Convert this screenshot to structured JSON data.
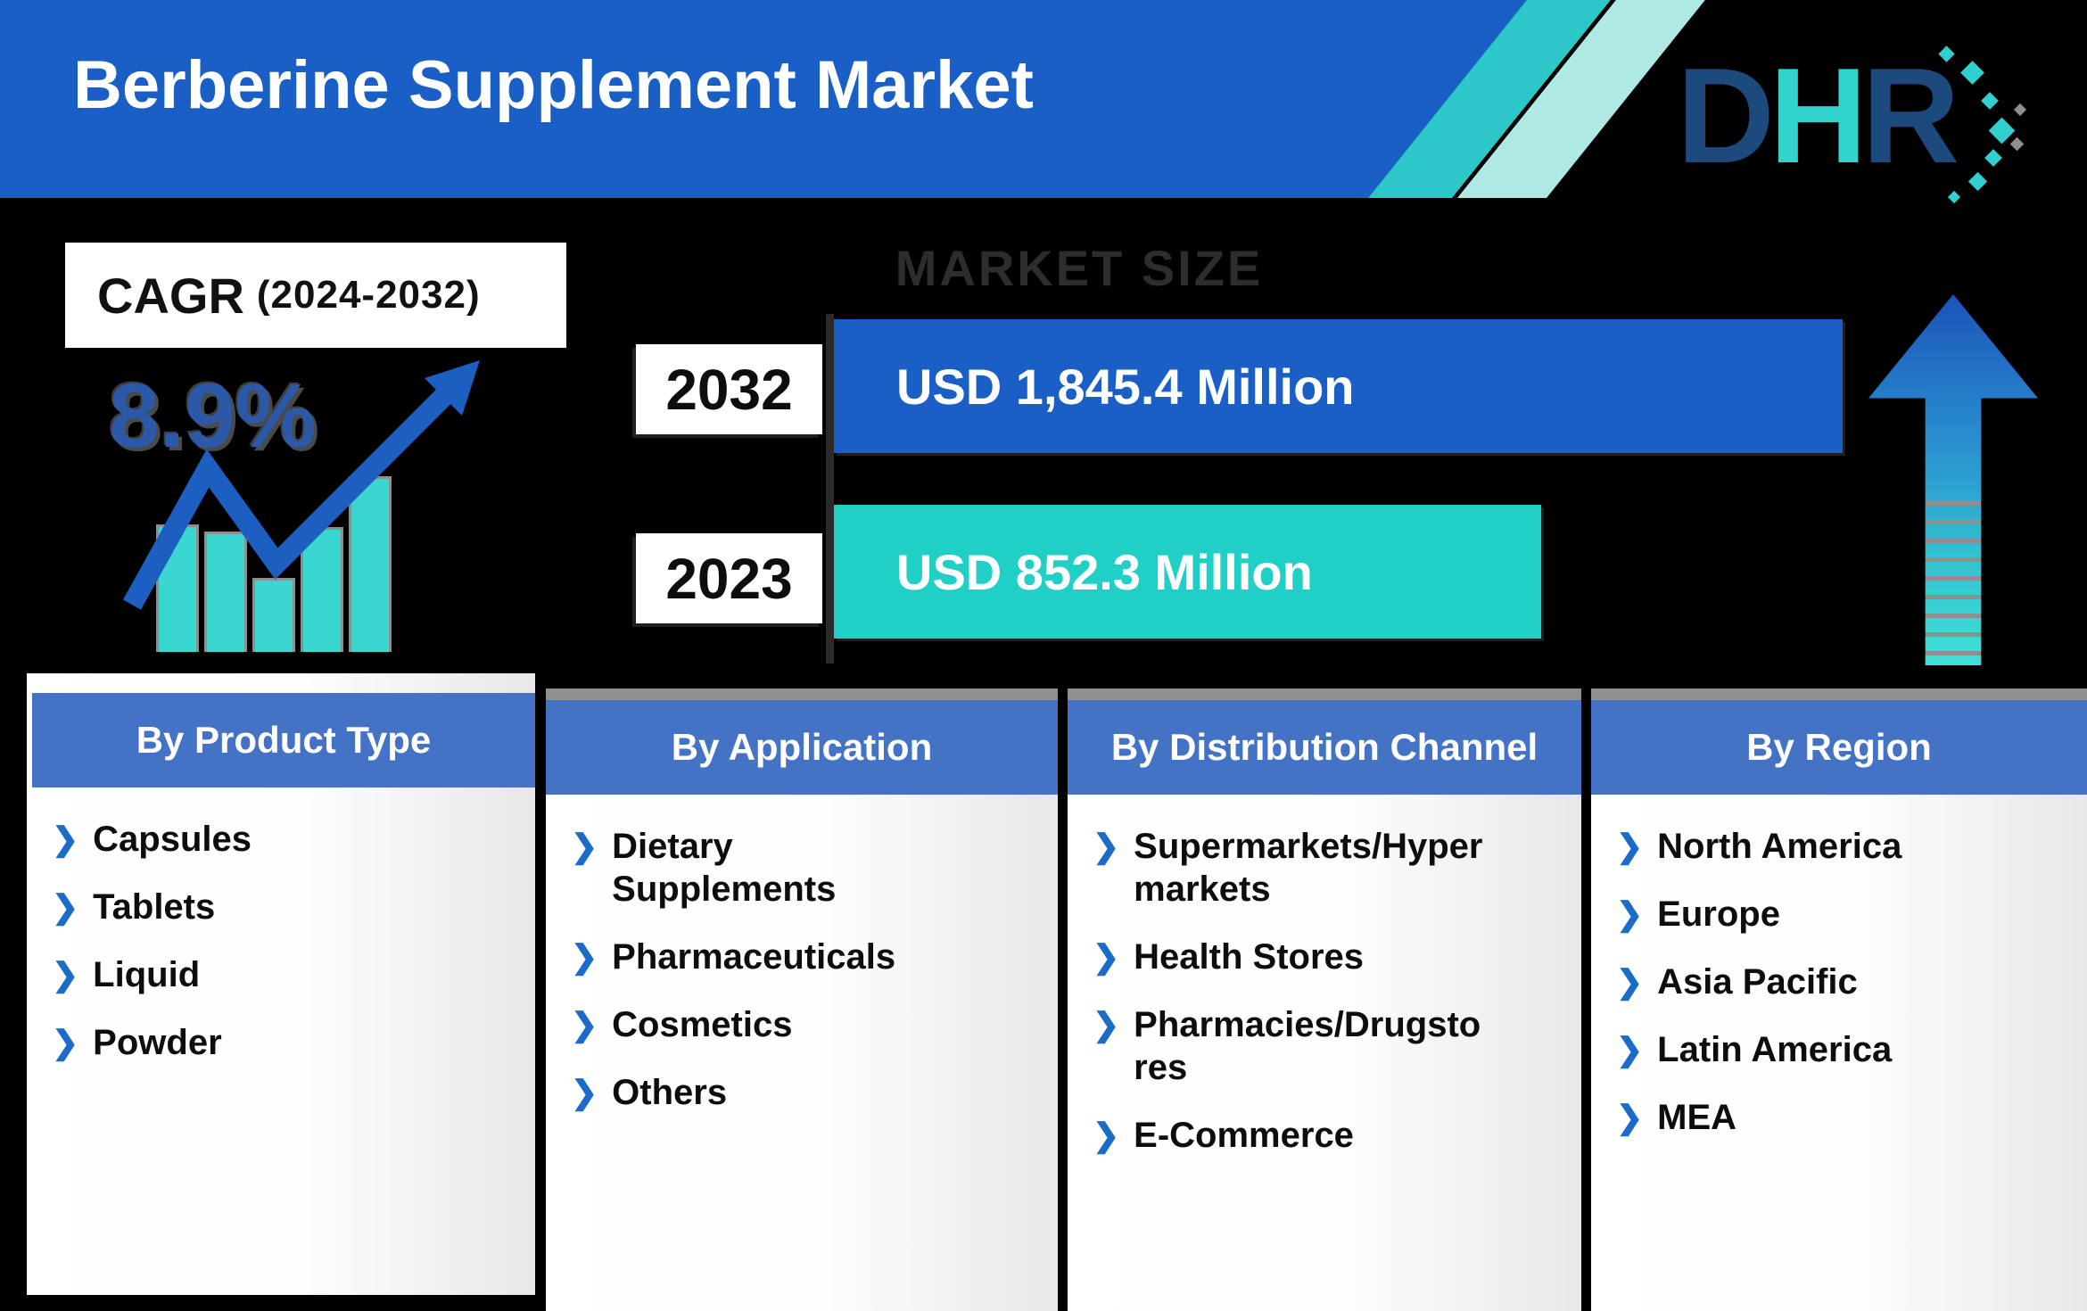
{
  "header": {
    "title": "Berberine Supplement Market",
    "logo": {
      "d": "D",
      "h": "H",
      "r": "R"
    }
  },
  "cagr": {
    "label": "CAGR",
    "period": "(2024-2032)",
    "value": "8.9%"
  },
  "market_size": {
    "heading": "MARKET SIZE",
    "rows": [
      {
        "year": "2032",
        "value": "USD 1,845.4 Million"
      },
      {
        "year": "2023",
        "value": "USD 852.3 Million"
      }
    ]
  },
  "chart_data": {
    "type": "bar",
    "orientation": "horizontal",
    "title": "MARKET SIZE",
    "categories": [
      "2032",
      "2023"
    ],
    "values": [
      1845.4,
      852.3
    ],
    "unit": "USD Million",
    "bar_labels": [
      "USD 1,845.4 Million",
      "USD 852.3 Million"
    ],
    "bar_colors": [
      "#1a5fc6",
      "#20cfc6"
    ],
    "annotations": {
      "cagr_value": "8.9%",
      "cagr_period": "2024-2032"
    },
    "mini_trend_bars_relative": [
      143,
      135,
      83,
      140,
      197
    ]
  },
  "icons": {
    "chevron": "❯"
  },
  "segments": [
    {
      "title": "By Product Type",
      "items": [
        "Capsules",
        "Tablets",
        "Liquid",
        "Powder"
      ]
    },
    {
      "title": "By Application",
      "items": [
        "Dietary\nSupplements",
        "Pharmaceuticals",
        "Cosmetics",
        "Others"
      ]
    },
    {
      "title": "By Distribution Channel",
      "items": [
        "Supermarkets/Hyper\nmarkets",
        "Health Stores",
        "Pharmacies/Drugsto\nres",
        "E-Commerce"
      ]
    },
    {
      "title": "By Region",
      "items": [
        "North America",
        "Europe",
        "Asia Pacific",
        "Latin America",
        "MEA"
      ]
    }
  ],
  "colors": {
    "banner_blue": "#1a5fc6",
    "column_header_blue": "#4472c4",
    "teal": "#20cfc6",
    "light_teal_stripe": "#aee9e4",
    "navy_logo": "#1d4a7c",
    "cagr_value_blue": "#2b59a8",
    "background": "#000000"
  }
}
